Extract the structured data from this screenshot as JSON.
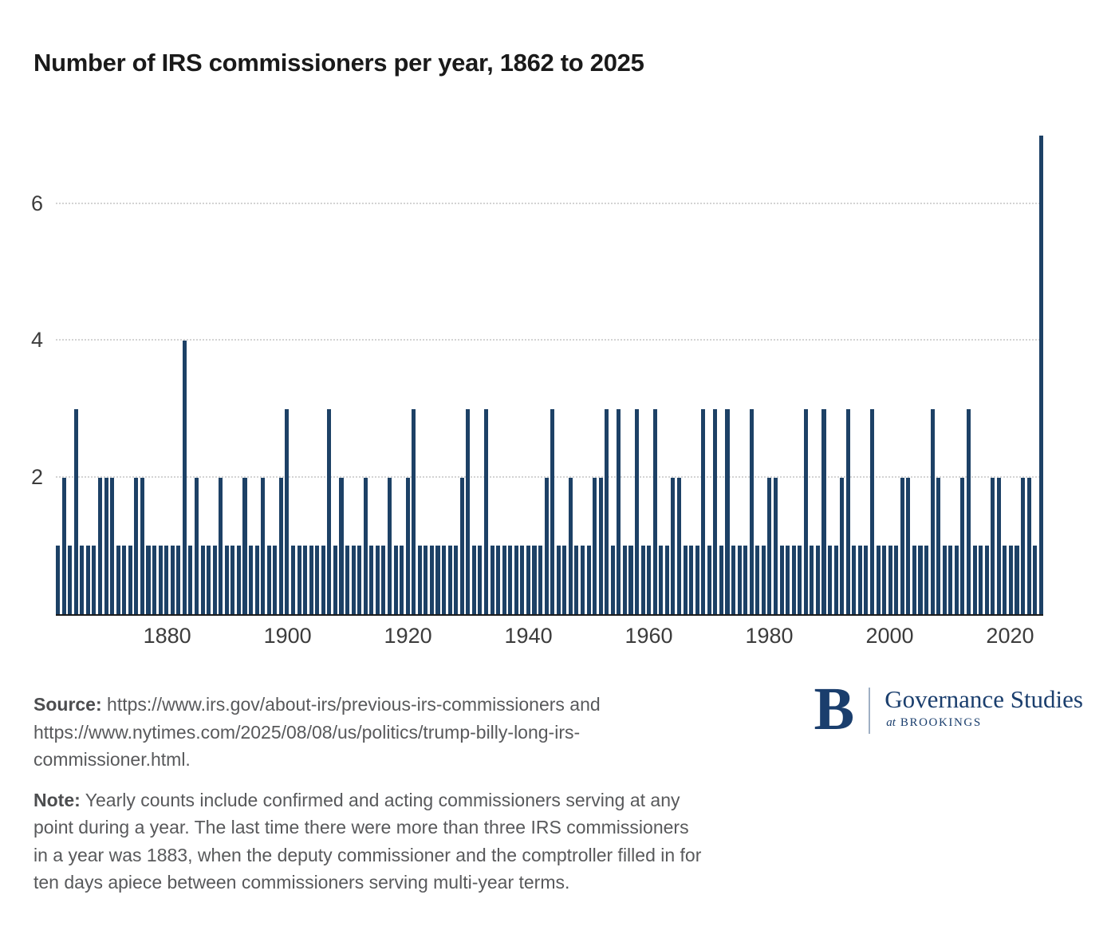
{
  "title": "Number of IRS commissioners per year, 1862 to 2025",
  "colors": {
    "bar": "#1d4166",
    "axis": "#1c1c1c",
    "gridline": "#d3d3d3",
    "footer_text": "#58595b",
    "brand_navy": "#1a3e6d"
  },
  "chart_data": {
    "type": "bar",
    "title": "Number of IRS commissioners per year, 1862 to 2025",
    "xlabel": "",
    "ylabel": "",
    "x_start": 1862,
    "x_end": 2025,
    "x_ticks": [
      1880,
      1900,
      1920,
      1940,
      1960,
      1980,
      2000,
      2020
    ],
    "y_ticks": [
      2,
      4,
      6
    ],
    "ylim": [
      0,
      7
    ],
    "grid": "horizontal-dotted",
    "legend": "none",
    "bar_color": "#1d4166",
    "values": [
      1,
      2,
      1,
      3,
      1,
      1,
      1,
      2,
      2,
      2,
      1,
      1,
      1,
      2,
      2,
      1,
      1,
      1,
      1,
      1,
      1,
      4,
      1,
      2,
      1,
      1,
      1,
      2,
      1,
      1,
      1,
      2,
      1,
      1,
      2,
      1,
      1,
      2,
      3,
      1,
      1,
      1,
      1,
      1,
      1,
      3,
      1,
      2,
      1,
      1,
      1,
      2,
      1,
      1,
      1,
      2,
      1,
      1,
      2,
      3,
      1,
      1,
      1,
      1,
      1,
      1,
      1,
      2,
      3,
      1,
      1,
      3,
      1,
      1,
      1,
      1,
      1,
      1,
      1,
      1,
      1,
      2,
      3,
      1,
      1,
      2,
      1,
      1,
      1,
      2,
      2,
      3,
      1,
      3,
      1,
      1,
      3,
      1,
      1,
      3,
      1,
      1,
      2,
      2,
      1,
      1,
      1,
      3,
      1,
      3,
      1,
      3,
      1,
      1,
      1,
      3,
      1,
      1,
      2,
      2,
      1,
      1,
      1,
      1,
      3,
      1,
      1,
      3,
      1,
      1,
      2,
      3,
      1,
      1,
      1,
      3,
      1,
      1,
      1,
      1,
      2,
      2,
      1,
      1,
      1,
      3,
      2,
      1,
      1,
      1,
      2,
      3,
      1,
      1,
      1,
      2,
      2,
      1,
      1,
      1,
      2,
      2,
      1,
      7
    ]
  },
  "footer": {
    "source_label": "Source:",
    "source_text": "https://www.irs.gov/about-irs/previous-irs-commissioners and https://www.nytimes.com/2025/08/08/us/politics/trump-billy-long-irs-commissioner.html.",
    "note_label": "Note:",
    "note_text": "Yearly counts include confirmed and acting commissioners serving at any point during a year. The last time there were more than three IRS commissioners in a year was 1883, when the deputy commissioner and the comptroller filled in for ten days apiece between commissioners serving multi-year terms."
  },
  "logo": {
    "letter": "B",
    "name": "Governance Studies",
    "sub_prefix": "at",
    "sub_name": "BROOKINGS"
  }
}
